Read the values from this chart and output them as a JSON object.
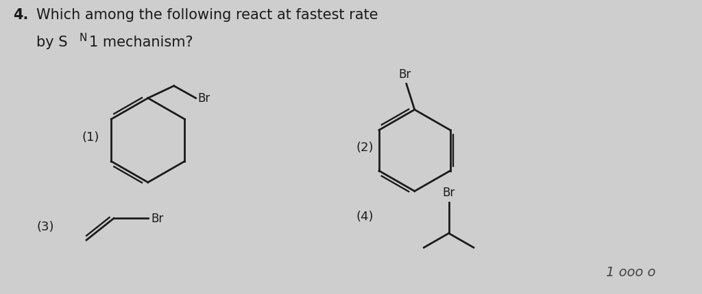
{
  "bg_color": "#cecece",
  "text_color": "#1a1a1a",
  "question_num": "4.",
  "title_line1": "Which among the following react at fastest rate",
  "title_line2_pre": "by S",
  "title_sub": "N",
  "title_line2_post": "1 mechanism?",
  "label1": "(1)",
  "label2": "(2)",
  "label3": "(3)",
  "label4": "(4)",
  "br": "Br",
  "watermark": "1 ooo o"
}
